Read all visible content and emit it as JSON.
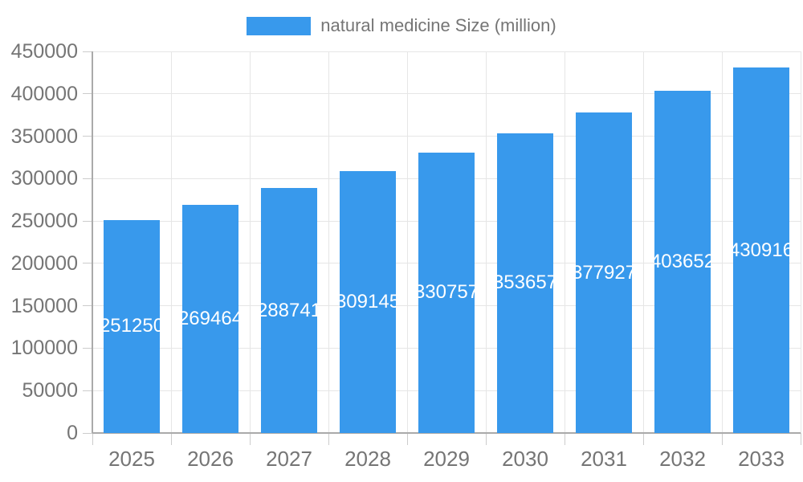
{
  "legend": {
    "label": "natural medicine Size (million)"
  },
  "colors": {
    "bar": "#3899EC",
    "grid": "#E6E6E6",
    "axis": "#AAAAAA",
    "tick": "#CCCCCC",
    "text": "#757575",
    "value_label": "#FFFFFF",
    "background": "#FFFFFF"
  },
  "chart_data": {
    "type": "bar",
    "title": "",
    "legend_entries": [
      "natural medicine Size (million)"
    ],
    "legend_position": "top",
    "categories": [
      "2025",
      "2026",
      "2027",
      "2028",
      "2029",
      "2030",
      "2031",
      "2032",
      "2033"
    ],
    "series": [
      {
        "name": "natural medicine Size (million)",
        "values": [
          251250,
          269464,
          288741,
          309145,
          330757,
          353657,
          377927,
          403652,
          430916
        ]
      }
    ],
    "value_labels": {
      "position": "center-inside-bar",
      "color": "#FFFFFF"
    },
    "xlabel": "",
    "ylabel": "",
    "ylim": [
      0,
      450000
    ],
    "ytick_step": 50000,
    "ytick_labels": [
      "0",
      "50000",
      "100000",
      "150000",
      "200000",
      "250000",
      "300000",
      "350000",
      "400000",
      "450000"
    ],
    "grid": true
  }
}
